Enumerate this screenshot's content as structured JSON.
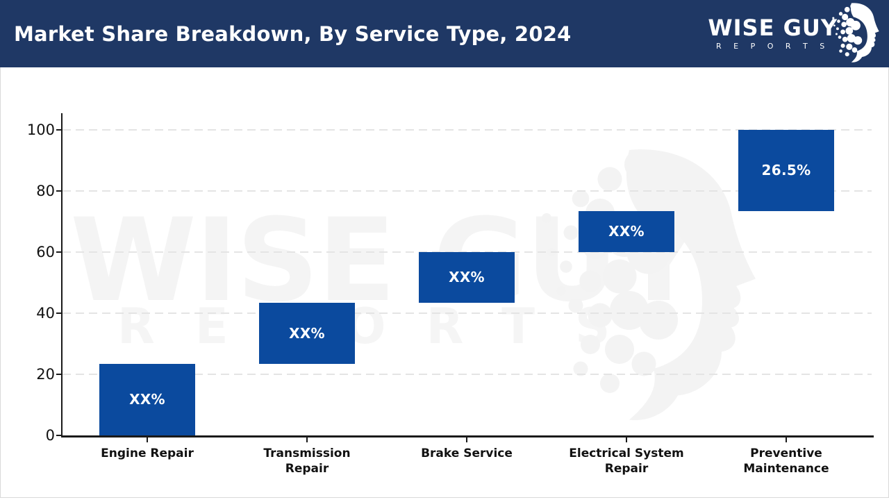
{
  "header": {
    "title": "Market Share Breakdown, By Service Type, 2024",
    "logo": {
      "name": "WISE GUY",
      "sub": "R E P O R T S"
    }
  },
  "watermark": {
    "line1": "WISE GUY",
    "line2": "REPORTS"
  },
  "chart_data": {
    "type": "bar",
    "subtype": "waterfall",
    "title": "Market Share Breakdown, By Service Type, 2024",
    "categories": [
      "Engine Repair",
      "Transmission Repair",
      "Brake Service",
      "Electrical System Repair",
      "Preventive Maintenance"
    ],
    "series": [
      {
        "name": "Market Share",
        "segments": [
          {
            "category": "Engine Repair",
            "start": 0,
            "end": 23.5,
            "label": "XX%"
          },
          {
            "category": "Transmission Repair",
            "start": 23.5,
            "end": 43.5,
            "label": "XX%"
          },
          {
            "category": "Brake Service",
            "start": 43.5,
            "end": 60,
            "label": "XX%"
          },
          {
            "category": "Electrical System Repair",
            "start": 60,
            "end": 73.5,
            "label": "XX%"
          },
          {
            "category": "Preventive Maintenance",
            "start": 73.5,
            "end": 100,
            "label": "26.5%"
          }
        ]
      }
    ],
    "ylim": [
      0,
      100
    ],
    "yticks": [
      0,
      20,
      40,
      60,
      80,
      100
    ],
    "xlabel": "",
    "ylabel": "",
    "grid": true,
    "legend": false,
    "bar_color": "#0b4a9e",
    "bar_label_color": "#ffffff"
  },
  "colors": {
    "header_bg": "#1f3865",
    "bar": "#0b4a9e",
    "axis": "#1a1a1a",
    "gridline": "#e4e4e4",
    "watermark": "#f4f4f4"
  }
}
